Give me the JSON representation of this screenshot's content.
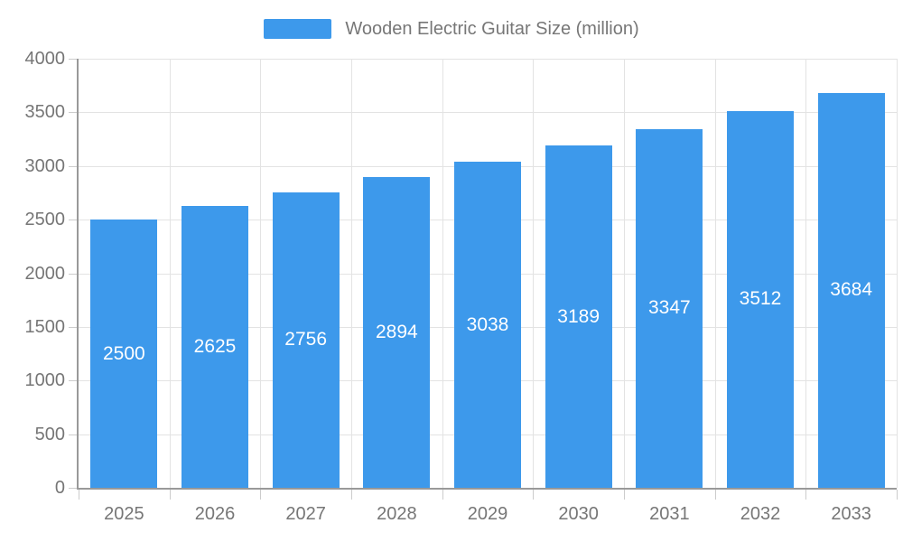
{
  "chart_data": {
    "type": "bar",
    "title": "Wooden Electric Guitar Size (million)",
    "categories": [
      "2025",
      "2026",
      "2027",
      "2028",
      "2029",
      "2030",
      "2031",
      "2032",
      "2033"
    ],
    "values": [
      2500,
      2625,
      2756,
      2894,
      3038,
      3189,
      3347,
      3512,
      3684
    ],
    "xlabel": "",
    "ylabel": "",
    "ylim": [
      0,
      4000
    ],
    "ytick_step": 500,
    "ytick_labels": [
      "0",
      "500",
      "1000",
      "1500",
      "2000",
      "2500",
      "3000",
      "3500",
      "4000"
    ],
    "grid": true,
    "legend_position": "top-center",
    "value_labels": "inside-center-white",
    "colors": {
      "bar": "#3d99eb",
      "bar_value_text": "#ffffff",
      "axis_text": "#767676",
      "legend_text": "#777777",
      "gridline": "#e3e3e3",
      "axis_line": "#999999",
      "tick": "#cccccc",
      "background": "#ffffff"
    }
  }
}
